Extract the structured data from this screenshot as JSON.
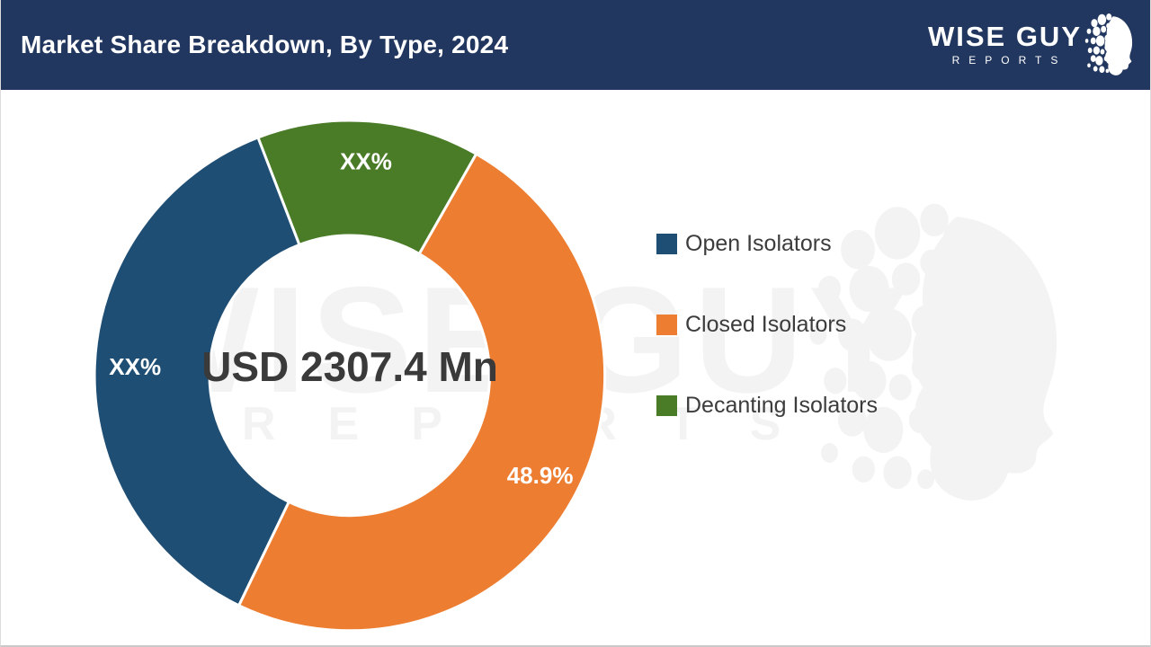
{
  "header": {
    "title": "Market Share Breakdown, By Type, 2024",
    "logo": {
      "line1": "WISE GUY",
      "line2": "REPORTS"
    }
  },
  "watermark": {
    "line1": "WISE GUY",
    "line2": "REPORTS"
  },
  "chart_data": {
    "type": "pie",
    "subtype": "donut",
    "title": "Market Share Breakdown, By Type, 2024",
    "center_label": "USD 2307.4 Mn",
    "units": "percent market share",
    "start_angle_deg": 60.3,
    "direction": "counterclockwise",
    "inner_radius_ratio": 0.55,
    "legend_position": "right",
    "slices": [
      {
        "label": "Open Isolators",
        "display": "XX%",
        "percent": 37.0,
        "color": "#1F4E74"
      },
      {
        "label": "Closed Isolators",
        "display": "48.9%",
        "percent": 48.9,
        "color": "#ED7D31"
      },
      {
        "label": "Decanting Isolators",
        "display": "XX%",
        "percent": 14.1,
        "color": "#4A7C28"
      }
    ],
    "draw_order_ccw": [
      2,
      0,
      1
    ]
  },
  "colors": {
    "header_bg": "#22375F",
    "text_dark": "#3c3c3c",
    "watermark": "#f3f3f3",
    "background": "#ffffff",
    "slice_border": "#ffffff"
  }
}
